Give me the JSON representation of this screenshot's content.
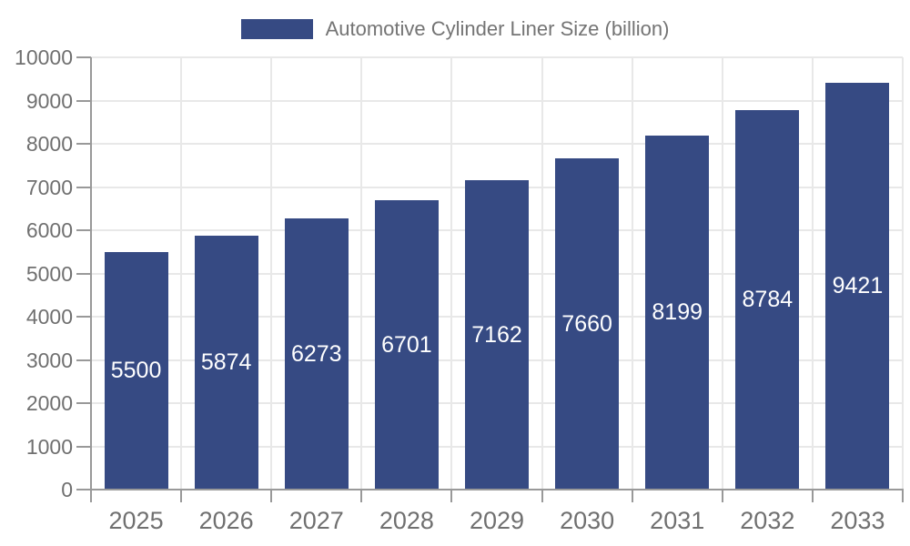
{
  "chart_data": {
    "type": "bar",
    "title": "Automotive Cylinder Liner Size (billion)",
    "legend": {
      "position": "top-center",
      "items": [
        "Automotive Cylinder Liner Size (billion)"
      ]
    },
    "categories": [
      "2025",
      "2026",
      "2027",
      "2028",
      "2029",
      "2030",
      "2031",
      "2032",
      "2033"
    ],
    "series": [
      {
        "name": "Automotive Cylinder Liner Size (billion)",
        "values": [
          5500,
          5874,
          6273,
          6701,
          7162,
          7660,
          8199,
          8784,
          9421
        ]
      }
    ],
    "xlabel": "",
    "ylabel": "",
    "ylim": [
      0,
      10000
    ],
    "ytick_interval": 1000,
    "grid": true,
    "bar_value_labels": true,
    "colors": {
      "bar": "#364A83",
      "bar_label": "#FFFFFF",
      "axis_text": "#707070",
      "legend_text": "#747474",
      "grid_line": "#E8E8E8",
      "axis_line": "#999999",
      "background": "#FFFFFF"
    }
  }
}
